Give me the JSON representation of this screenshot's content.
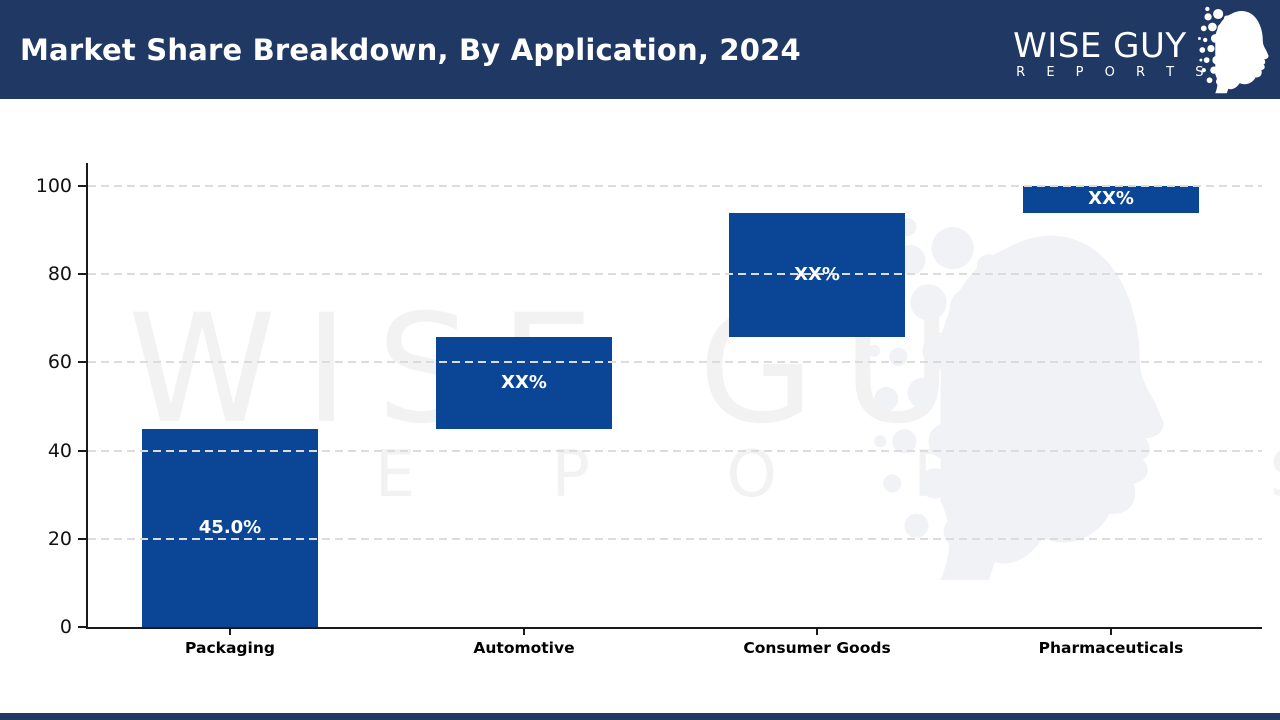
{
  "header": {
    "title": "Market Share Breakdown, By Application, 2024",
    "bg_color": "#203864",
    "logo": {
      "primary": "WISE GUY",
      "secondary": "R E P O R T S"
    }
  },
  "watermark": {
    "line1": "WISE GUY",
    "line2": "R E P O R T S"
  },
  "chart_data": {
    "type": "bar",
    "subtype": "waterfall-floating-bars",
    "title": "Market Share Breakdown, By Application, 2024",
    "xlabel": "",
    "ylabel": "",
    "categories": [
      "Packaging",
      "Automotive",
      "Consumer Goods",
      "Pharmaceuticals"
    ],
    "segments": [
      {
        "category": "Packaging",
        "start": 0.0,
        "end": 45.0,
        "value_label": "45.0%"
      },
      {
        "category": "Automotive",
        "start": 45.0,
        "end": 65.8,
        "value_label": "XX%"
      },
      {
        "category": "Consumer Goods",
        "start": 65.8,
        "end": 93.9,
        "value_label": "XX%"
      },
      {
        "category": "Pharmaceuticals",
        "start": 93.9,
        "end": 100.0,
        "value_label": "XX%"
      }
    ],
    "yticks": [
      0,
      20,
      40,
      60,
      80,
      100
    ],
    "ylim": [
      0,
      105
    ],
    "grid": "dashed-horizontal",
    "legend": "none",
    "bar_color": "#0b4596",
    "bar_label_color": "#ffffff",
    "axis_color": "#1a1a1a",
    "grid_color": "#dcdcdc"
  }
}
